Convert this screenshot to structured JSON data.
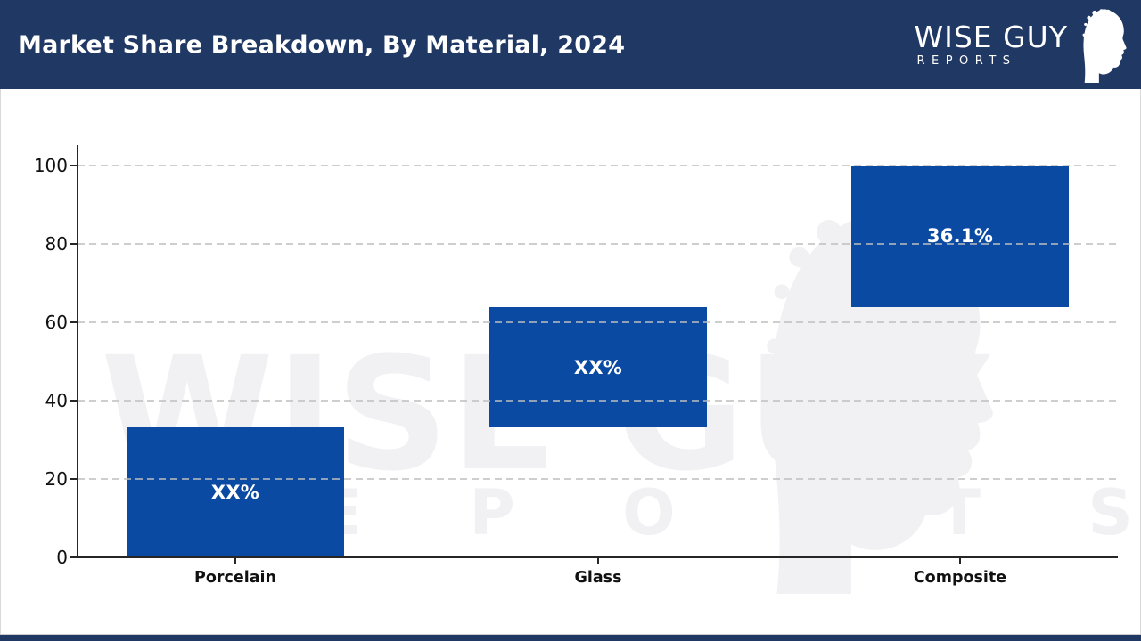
{
  "header": {
    "title": "Market Share Breakdown, By Material, 2024"
  },
  "logo": {
    "brand_top": "WISE GUY",
    "brand_bottom": "REPORTS"
  },
  "watermark": {
    "line1": "WISE GUY",
    "line2": "R E P O R T S"
  },
  "colors": {
    "header_bg": "#203864",
    "footer_bg": "#203864",
    "bar": "#0b4aa2",
    "bar_label": "#ffffff",
    "gridline": "#d9d9d9",
    "axis": "#262626",
    "watermark": "#f1f1f4"
  },
  "chart_data": {
    "type": "bar",
    "subtype": "waterfall",
    "title": "Market Share Breakdown, By Material, 2024",
    "xlabel": "",
    "ylabel": "",
    "ylim": [
      0,
      100
    ],
    "yticks": [
      0,
      20,
      40,
      60,
      80,
      100
    ],
    "grid": "horizontal dashed, drawn over bars",
    "legend": "none",
    "categories": [
      "Porcelain",
      "Glass",
      "Composite"
    ],
    "values": [
      33.1,
      30.8,
      36.1
    ],
    "segments": [
      {
        "category": "Porcelain",
        "start": 0,
        "end": 33.1,
        "label": "XX%"
      },
      {
        "category": "Glass",
        "start": 33.1,
        "end": 63.9,
        "label": "XX%"
      },
      {
        "category": "Composite",
        "start": 63.9,
        "end": 100,
        "label": "36.1%"
      }
    ],
    "bar_labels": [
      "XX%",
      "XX%",
      "36.1%"
    ]
  }
}
